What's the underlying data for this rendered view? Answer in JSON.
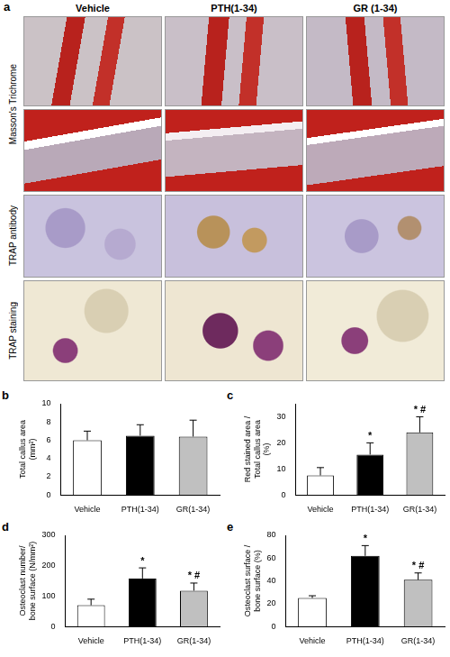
{
  "figure_panel_a": {
    "letter": "a",
    "columns": [
      "Vehicle",
      "PTH(1-34)",
      "GR (1-34)"
    ],
    "rows": [
      "Masson's Trichrome",
      "TRAP antibody",
      "TRAP staining"
    ]
  },
  "panel_letters": [
    "b",
    "c",
    "d",
    "e"
  ],
  "chart_data": [
    {
      "type": "bar",
      "y_label": "Total callus area (mm²)",
      "categories": [
        "Vehicle",
        "PTH(1-34)",
        "GR(1-34)"
      ],
      "values": [
        6.0,
        6.5,
        6.4
      ],
      "errors": [
        1.0,
        1.2,
        1.8
      ],
      "colors": [
        "#ffffff",
        "#000000",
        "#c0c0c0"
      ],
      "ylim": [
        0,
        10
      ],
      "yticks": [
        0,
        2,
        4,
        6,
        8,
        10
      ],
      "grid": false
    },
    {
      "type": "bar",
      "y_label": "Red stained area / Total callus area (%)",
      "categories": [
        "Vehicle",
        "PTH(1-34)",
        "GR(1-34)"
      ],
      "values": [
        7.5,
        15.5,
        24
      ],
      "errors": [
        3,
        4.5,
        6
      ],
      "annotations": [
        null,
        "*",
        "* #"
      ],
      "colors": [
        "#ffffff",
        "#000000",
        "#c0c0c0"
      ],
      "ylim": [
        0,
        35
      ],
      "yticks": [
        0,
        10,
        20,
        30
      ],
      "grid": false
    },
    {
      "type": "bar",
      "y_label": "Osteoclast number/ bone surface (N/mm²)",
      "categories": [
        "Vehicle",
        "PTH(1-34)",
        "GR(1-34)"
      ],
      "values": [
        70,
        158,
        118
      ],
      "errors": [
        20,
        35,
        25
      ],
      "annotations": [
        null,
        "*",
        "* #"
      ],
      "colors": [
        "#ffffff",
        "#000000",
        "#c0c0c0"
      ],
      "ylim": [
        0,
        300
      ],
      "yticks": [
        0,
        100,
        200,
        300
      ],
      "grid": false
    },
    {
      "type": "bar",
      "y_label": "Osteoclast surface / bone surface (%)",
      "categories": [
        "Vehicle",
        "PTH(1-34)",
        "GR(1-34)"
      ],
      "values": [
        25,
        62,
        41
      ],
      "errors": [
        2,
        9,
        6
      ],
      "annotations": [
        null,
        "*",
        "* #"
      ],
      "colors": [
        "#ffffff",
        "#000000",
        "#c0c0c0"
      ],
      "ylim": [
        0,
        80
      ],
      "yticks": [
        0,
        20,
        40,
        60,
        80
      ],
      "grid": false
    }
  ]
}
